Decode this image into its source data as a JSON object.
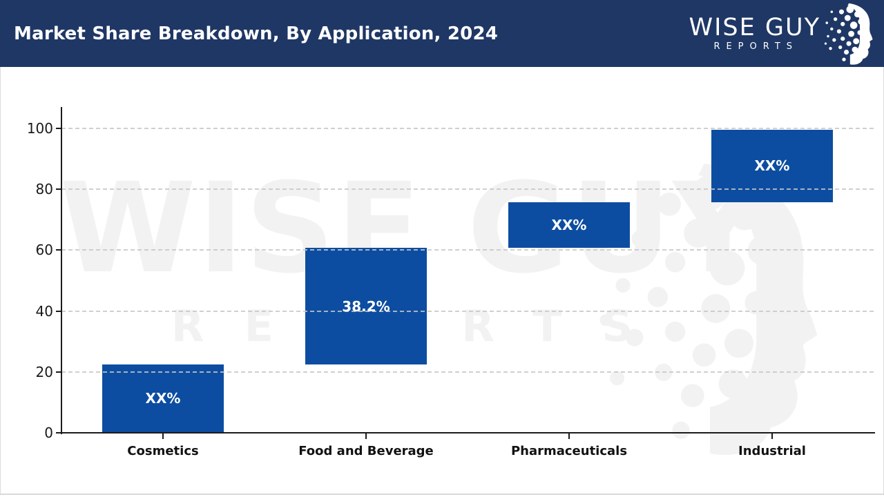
{
  "header": {
    "title": "Market Share Breakdown, By Application, 2024",
    "logo": {
      "line1": "WISE GUY",
      "line2": "REPORTS"
    }
  },
  "watermark": {
    "line1": "WISE GUY",
    "line2": "REPORTS"
  },
  "colors": {
    "header_bg": "#1f3765",
    "bar": "#0d4da1",
    "bar_label": "#ffffff",
    "axis": "#1a1a1a",
    "gridline": "#c7c7c7",
    "watermark": "#f2f2f2",
    "border": "#dcdcdc"
  },
  "chart_data": {
    "type": "bar",
    "variant": "waterfall",
    "title": "Market Share Breakdown, By Application, 2024",
    "categories": [
      "Cosmetics",
      "Food and Beverage",
      "Pharmaceuticals",
      "Industrial"
    ],
    "series": [
      {
        "category": "Cosmetics",
        "start": 0,
        "end": 22.5,
        "label": "XX%"
      },
      {
        "category": "Food and Beverage",
        "start": 22.5,
        "end": 60.7,
        "label": "38.2%"
      },
      {
        "category": "Pharmaceuticals",
        "start": 60.7,
        "end": 75.8,
        "label": "XX%"
      },
      {
        "category": "Industrial",
        "start": 75.8,
        "end": 99.5,
        "label": "XX%"
      }
    ],
    "ylim": [
      0,
      100
    ],
    "yticks": [
      0,
      20,
      40,
      60,
      80,
      100
    ],
    "xlabel": "",
    "ylabel": "",
    "grid": "horizontal-dashed-over-bars",
    "legend": "none",
    "bar_color": "#0d4da1",
    "bar_label_color": "#ffffff"
  }
}
